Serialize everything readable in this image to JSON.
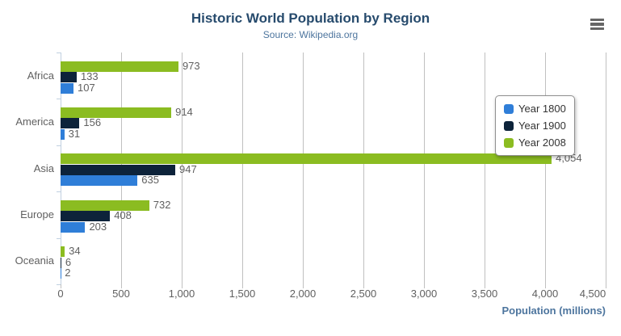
{
  "chart_data": {
    "type": "bar",
    "orientation": "horizontal",
    "title": "Historic World Population by Region",
    "subtitle": "Source: Wikipedia.org",
    "categories": [
      "Africa",
      "America",
      "Asia",
      "Europe",
      "Oceania"
    ],
    "series": [
      {
        "name": "Year 1800",
        "color": "#2f7ed8",
        "values": [
          107,
          31,
          635,
          203,
          2
        ]
      },
      {
        "name": "Year 1900",
        "color": "#0d233a",
        "values": [
          133,
          156,
          947,
          408,
          6
        ]
      },
      {
        "name": "Year 2008",
        "color": "#8bbc21",
        "values": [
          973,
          914,
          4054,
          732,
          34
        ]
      }
    ],
    "bar_display_order_top_to_bottom": [
      "Year 2008",
      "Year 1900",
      "Year 1800"
    ],
    "data_labels_visible": true,
    "data_labels": {
      "Year 1800": [
        "107",
        "31",
        "635",
        "203",
        "2"
      ],
      "Year 1900": [
        "133",
        "156",
        "947",
        "408",
        "6"
      ],
      "Year 2008": [
        "973",
        "914",
        "4,054",
        "732",
        "34"
      ]
    },
    "xlabel": "Population (millions)",
    "xlim": [
      0,
      4500
    ],
    "x_tick_step": 500,
    "x_tick_labels": [
      "0",
      "500",
      "1,000",
      "1,500",
      "2,000",
      "2,500",
      "3,000",
      "3,500",
      "4,000",
      "4,500"
    ],
    "grid": true,
    "legend": {
      "position": "right-inside",
      "entries": [
        "Year 1800",
        "Year 1900",
        "Year 2008"
      ]
    }
  },
  "toolbar": {
    "menu_icon": "hamburger-menu",
    "menu_tooltip": "Chart context menu"
  },
  "colors": {
    "title": "#274b6d",
    "subtitle": "#4d759e",
    "axis_title": "#4d759e",
    "tick_labels": "#606060",
    "data_labels": "#606060",
    "gridline": "#c0c0c0",
    "category_axis_line": "#c0d0e0",
    "legend_border": "#909090",
    "legend_text": "#333333",
    "menu_icon": "#666666",
    "background": "#ffffff"
  }
}
